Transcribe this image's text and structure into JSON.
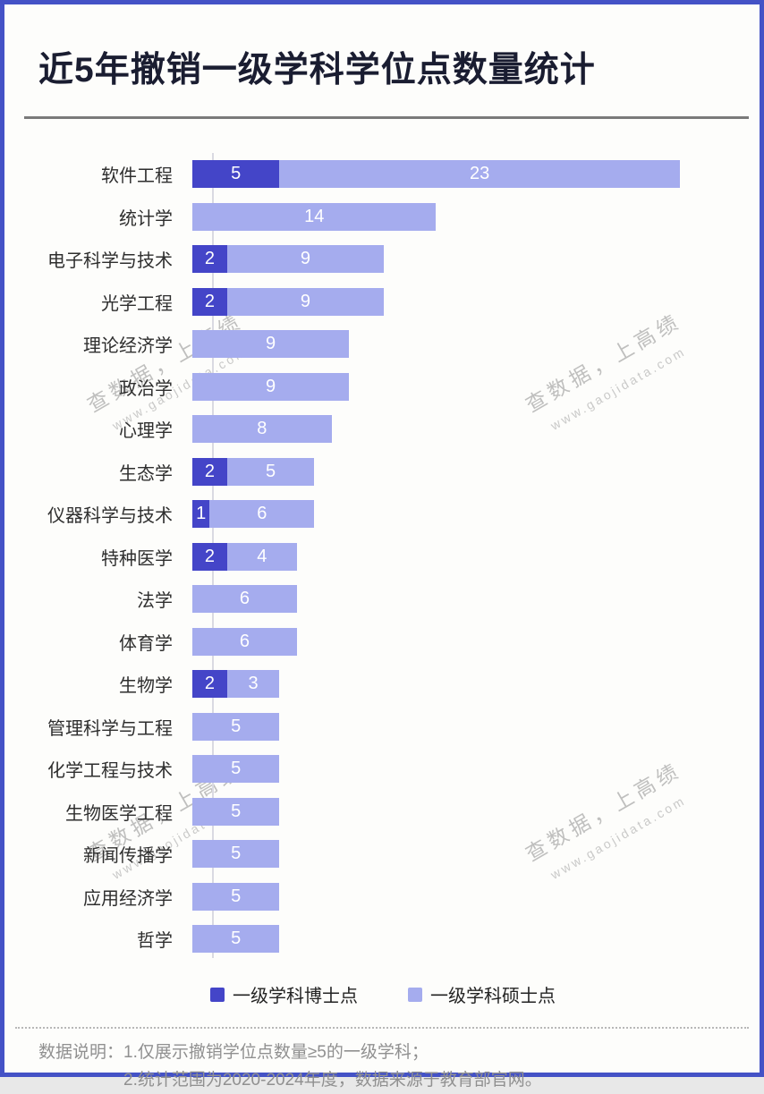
{
  "header": {
    "title": "近5年撤销一级学科学位点数量统计"
  },
  "chart_data": {
    "type": "bar",
    "orientation": "horizontal",
    "stacked": true,
    "x_axis_visible": false,
    "grid": false,
    "legend_position": "bottom",
    "value_labels": "inside-center-white",
    "categories": [
      "软件工程",
      "统计学",
      "电子科学与技术",
      "光学工程",
      "理论经济学",
      "政治学",
      "心理学",
      "生态学",
      "仪器科学与技术",
      "特种医学",
      "法学",
      "体育学",
      "生物学",
      "管理科学与工程",
      "化学工程与技术",
      "生物医学工程",
      "新闻传播学",
      "应用经济学",
      "哲学"
    ],
    "series": [
      {
        "name": "一级学科博士点",
        "color": "#4445c8",
        "values": [
          5,
          0,
          2,
          2,
          0,
          0,
          0,
          2,
          1,
          2,
          0,
          0,
          2,
          0,
          0,
          0,
          0,
          0,
          0
        ]
      },
      {
        "name": "一级学科硕士点",
        "color": "#a5acee",
        "values": [
          23,
          14,
          9,
          9,
          9,
          9,
          8,
          5,
          6,
          4,
          6,
          6,
          3,
          5,
          5,
          5,
          5,
          5,
          5
        ]
      }
    ],
    "xlim": [
      0,
      31
    ]
  },
  "legend": {
    "items": [
      {
        "label": "一级学科博士点",
        "color": "#4445c8"
      },
      {
        "label": "一级学科硕士点",
        "color": "#a5acee"
      }
    ]
  },
  "watermark": {
    "text": "查数据，上高绩",
    "url": "www.gaojidata.com"
  },
  "footer": {
    "prefix": "数据说明：",
    "notes": [
      "1.仅展示撤销学位点数量≥5的一级学科；",
      "2.统计范围为2020-2024年度，数据来源于教育部官网。"
    ]
  },
  "colors": {
    "page_border": "#4452c6",
    "title_text": "#1a1d31",
    "doctoral_bar": "#4445c8",
    "master_bar": "#a5acee",
    "bar_value_text": "#ffffff",
    "footer_text": "#909090"
  }
}
